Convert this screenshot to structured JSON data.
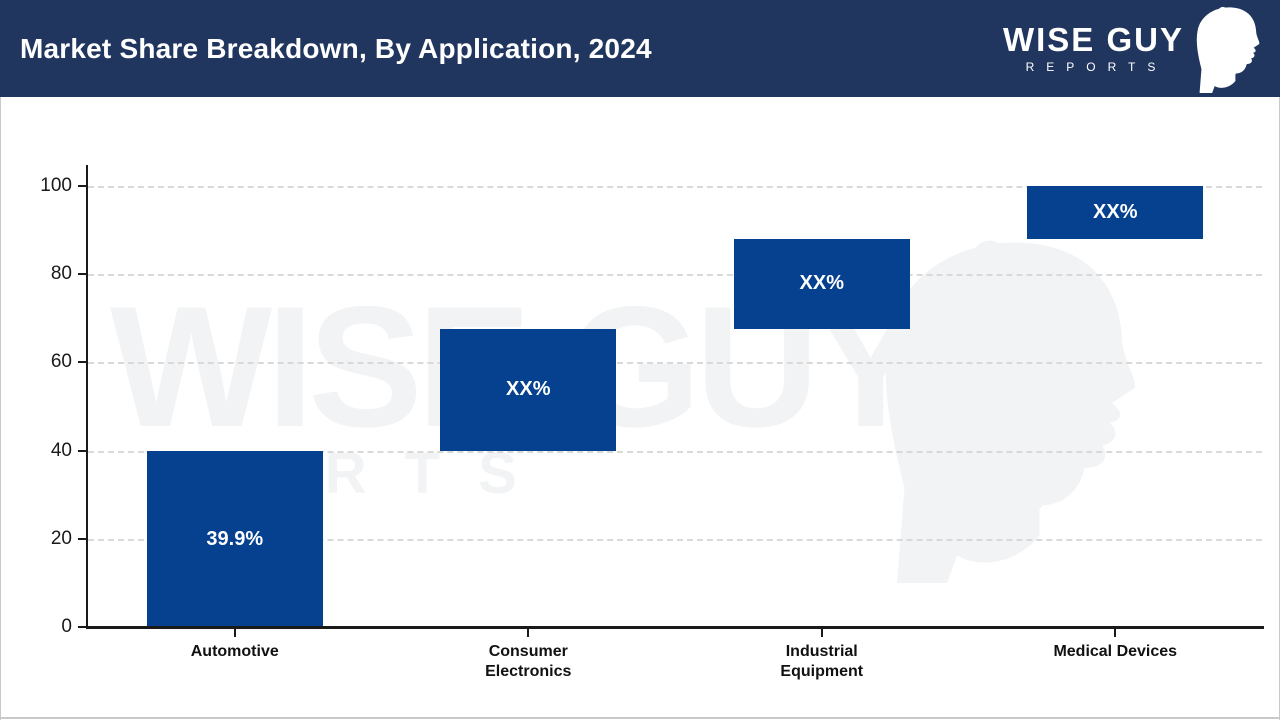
{
  "header": {
    "title": "Market Share Breakdown, By Application, 2024",
    "logo_line1": "WISE GUY",
    "logo_line2": "REPORTS"
  },
  "watermark": {
    "line1": "WISE GUY.",
    "line2": "PORTS"
  },
  "chart_data": {
    "type": "bar",
    "variant": "waterfall",
    "title": "Market Share Breakdown, By Application, 2024",
    "categories": [
      "Automotive",
      "Consumer Electronics",
      "Industrial Equipment",
      "Medical Devices"
    ],
    "segments": [
      {
        "category": "Automotive",
        "start": 0,
        "end": 39.9,
        "label": "39.9%"
      },
      {
        "category": "Consumer Electronics",
        "start": 39.9,
        "end": 67.6,
        "label": "XX%"
      },
      {
        "category": "Industrial Equipment",
        "start": 67.6,
        "end": 88.0,
        "label": "XX%"
      },
      {
        "category": "Medical Devices",
        "start": 88.0,
        "end": 100.0,
        "label": "XX%"
      }
    ],
    "ylim": [
      0,
      100
    ],
    "yticks": [
      0,
      20,
      40,
      60,
      80,
      100
    ],
    "grid": "horizontal-dashed",
    "legend": false
  },
  "colors": {
    "header_bg": "#21365e",
    "bar": "#05418f",
    "bar_label": "#ffffff",
    "grid": "#d9d9d9",
    "axis": "#1a1a1a",
    "watermark": "#f2f3f5",
    "border": "#c9c9c9"
  }
}
